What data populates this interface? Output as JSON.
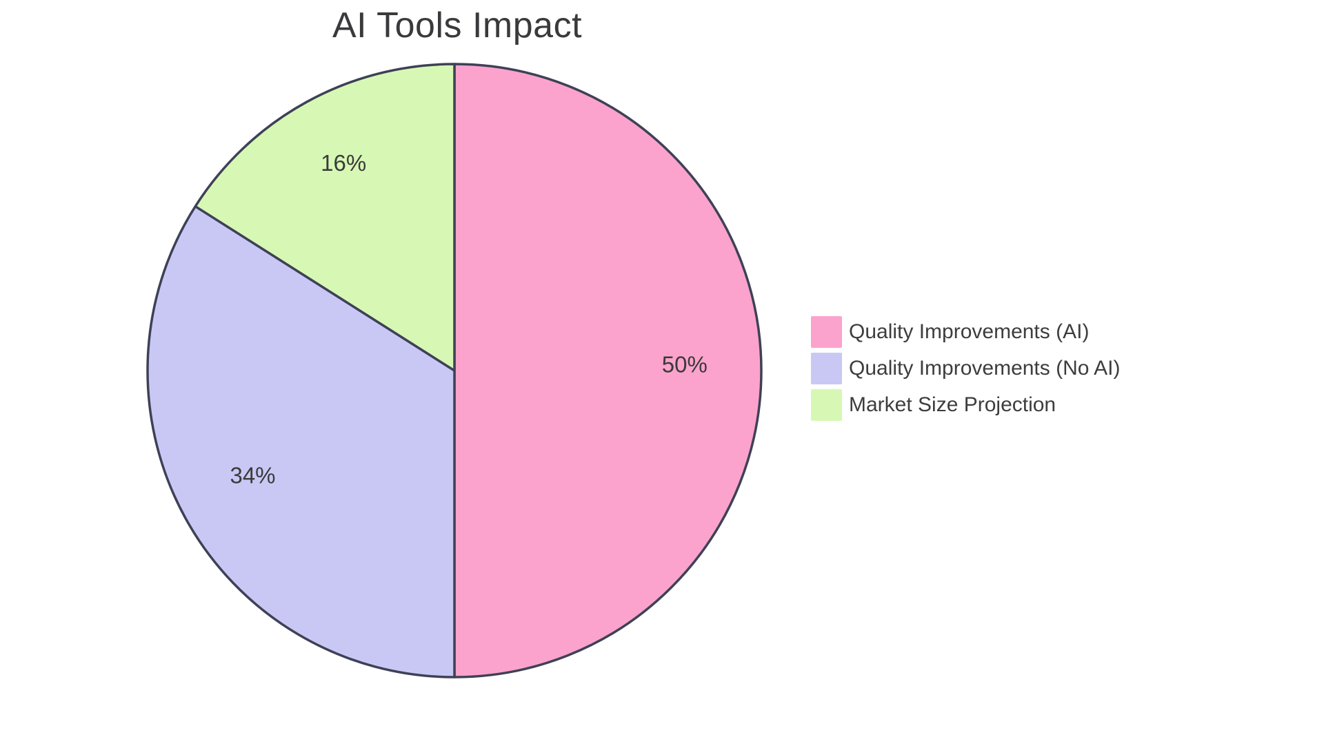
{
  "page": {
    "background_color": "#FFFFFF"
  },
  "chart_data": {
    "type": "pie",
    "title": "AI Tools Impact",
    "series": [
      {
        "name": "Quality Improvements (AI)",
        "value": 50,
        "display": "50%",
        "color": "#FBA3CC"
      },
      {
        "name": "Quality Improvements (No AI)",
        "value": 34,
        "display": "34%",
        "color": "#C9C8F5"
      },
      {
        "name": "Market Size Projection",
        "value": 16,
        "display": "16%",
        "color": "#D7F8B4"
      }
    ],
    "start_angle": "top",
    "direction": "clockwise",
    "legend_position": "right",
    "grid": false,
    "slice_border_color": "#3E4156",
    "label_color": "#3A3A3A",
    "title_color": "#3A3A3C",
    "legend_text_color": "#3D3D3D"
  }
}
